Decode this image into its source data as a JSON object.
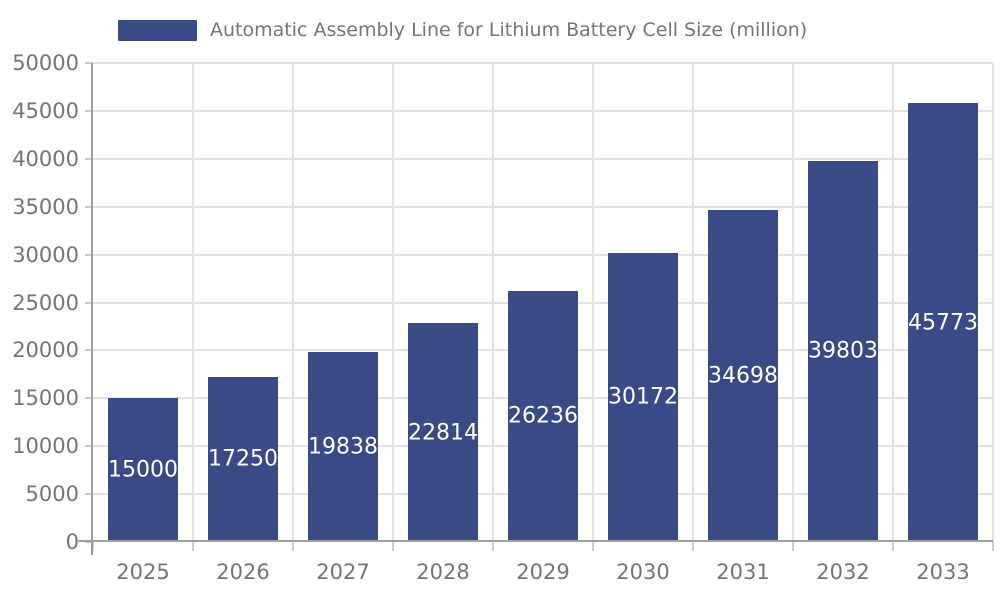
{
  "colors": {
    "bar": "#3A4A86",
    "bar_value_text": "#FFFFFF",
    "axis_text": "#757575",
    "gridline": "#E3E3E3",
    "axis_line": "#9E9E9E",
    "tick": "#CCCCCC",
    "background": "#FFFFFF"
  },
  "legend": {
    "label": "Automatic Assembly Line for Lithium Battery Cell Size (million)"
  },
  "chart_data": {
    "type": "bar",
    "title": "Automatic Assembly Line for Lithium Battery Cell Size (million)",
    "series_name": "Automatic Assembly Line for Lithium Battery Cell Size (million)",
    "categories": [
      "2025",
      "2026",
      "2027",
      "2028",
      "2029",
      "2030",
      "2031",
      "2032",
      "2033"
    ],
    "values": [
      15000,
      17250,
      19838,
      22814,
      26236,
      30172,
      34698,
      39803,
      45773
    ],
    "value_labels": [
      "15000",
      "17250",
      "19838",
      "22814",
      "26236",
      "30172",
      "34698",
      "39803",
      "45773"
    ],
    "xlabel": "",
    "ylabel": "",
    "ylim": [
      0,
      50000
    ],
    "ytick_step": 5000,
    "ytick_labels": [
      "0",
      "5000",
      "10000",
      "15000",
      "20000",
      "25000",
      "30000",
      "35000",
      "40000",
      "45000",
      "50000"
    ],
    "grid": true,
    "legend_position": "top-left",
    "value_label_position": "inside-center"
  }
}
